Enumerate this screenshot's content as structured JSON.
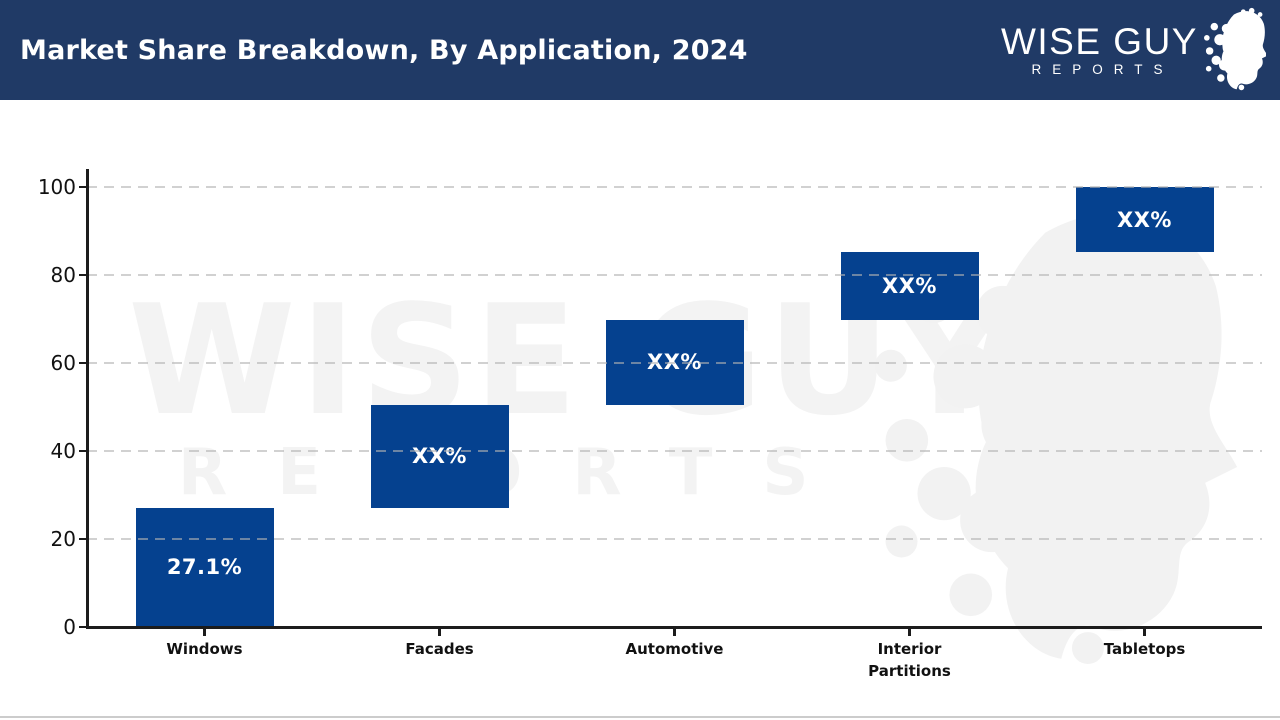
{
  "header": {
    "title": "Market Share Breakdown, By Application, 2024",
    "bg_color": "#203a66",
    "logo": {
      "line1": "WISE GUY",
      "line2": "REPORTS"
    }
  },
  "watermark": {
    "line1": "WISE GUY",
    "line2": "REPORTS"
  },
  "chart_data": {
    "type": "bar",
    "variant": "waterfall",
    "title": "Market Share Breakdown, By Application, 2024",
    "categories": [
      "Windows",
      "Facades",
      "Automotive",
      "Interior Partitions",
      "Tabletops"
    ],
    "segments": [
      {
        "category": "Windows",
        "from": 0,
        "to": 27.1,
        "label": "27.1%"
      },
      {
        "category": "Facades",
        "from": 27.1,
        "to": 50.5,
        "label": "XX%"
      },
      {
        "category": "Automotive",
        "from": 50.5,
        "to": 69.8,
        "label": "XX%"
      },
      {
        "category": "Interior Partitions",
        "from": 69.8,
        "to": 85.2,
        "label": "XX%"
      },
      {
        "category": "Tabletops",
        "from": 85.2,
        "to": 100,
        "label": "XX%"
      }
    ],
    "y_ticks": [
      0,
      20,
      40,
      60,
      80,
      100
    ],
    "ylim": [
      0,
      100
    ],
    "xlabel": "",
    "ylabel": "",
    "bar_color": "#05418f",
    "bar_label_color": "#ffffff",
    "grid": "horizontal-dashed",
    "legend": "none"
  }
}
